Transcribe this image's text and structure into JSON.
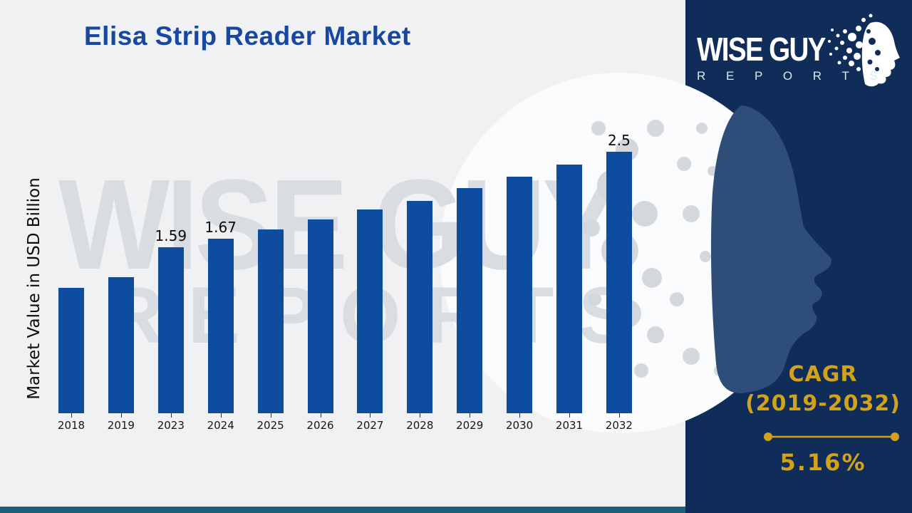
{
  "header": {
    "title": "Elisa Strip Reader Market"
  },
  "watermark": {
    "line1": "WISE GUY",
    "line2": "R E P O R T S"
  },
  "logo": {
    "name_top": "WISE GUY",
    "name_bottom": "R E P O R T S"
  },
  "cagr": {
    "heading": "CAGR",
    "range": "(2019-2032)",
    "value": "5.16%"
  },
  "chart_data": {
    "type": "bar",
    "title": "Elisa Strip Reader Market",
    "xlabel": "",
    "ylabel": "Market Value in USD Billion",
    "unit": "USD Billion",
    "categories": [
      "2018",
      "2019",
      "2023",
      "2024",
      "2025",
      "2026",
      "2027",
      "2028",
      "2029",
      "2030",
      "2031",
      "2032"
    ],
    "values": [
      1.2,
      1.3,
      1.59,
      1.67,
      1.76,
      1.85,
      1.95,
      2.03,
      2.15,
      2.26,
      2.38,
      2.5
    ],
    "value_labels": {
      "2023": "1.59",
      "2024": "1.67",
      "2032": "2.5"
    },
    "ylim": [
      0,
      2.95
    ],
    "grid": false,
    "legend": "none",
    "bar_color": "#0e4c9f"
  },
  "colors": {
    "background": "#f0f1f2",
    "bar": "#0e4c9f",
    "title": "#1747a0",
    "panel_navy": "#102c58",
    "accent_gold": "#d2a319",
    "teal_strip": "#1e5f7e",
    "face_blue": "#2e4d78",
    "watermark_gray": "#d9dce0",
    "circle_white": "#fbfcfe"
  }
}
